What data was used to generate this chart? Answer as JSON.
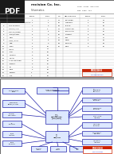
{
  "bg_color": "#ffffff",
  "page_bg": "#c8c8c8",
  "outer_bg": "#aaaaaa",
  "border_color": "#555555",
  "table_line": "#999999",
  "block_blue": "#2222aa",
  "block_fill": "#dde8ff",
  "block_fill_center": "#eeeeff",
  "pdf_bg": "#1a1a1a",
  "pdf_text": "#ffffff",
  "foxconn_red": "#cc2200",
  "foxconn_blue": "#1111cc",
  "line_color": "#3333bb",
  "text_dark": "#111111",
  "text_gray": "#444444",
  "header_sep": "#888888"
}
